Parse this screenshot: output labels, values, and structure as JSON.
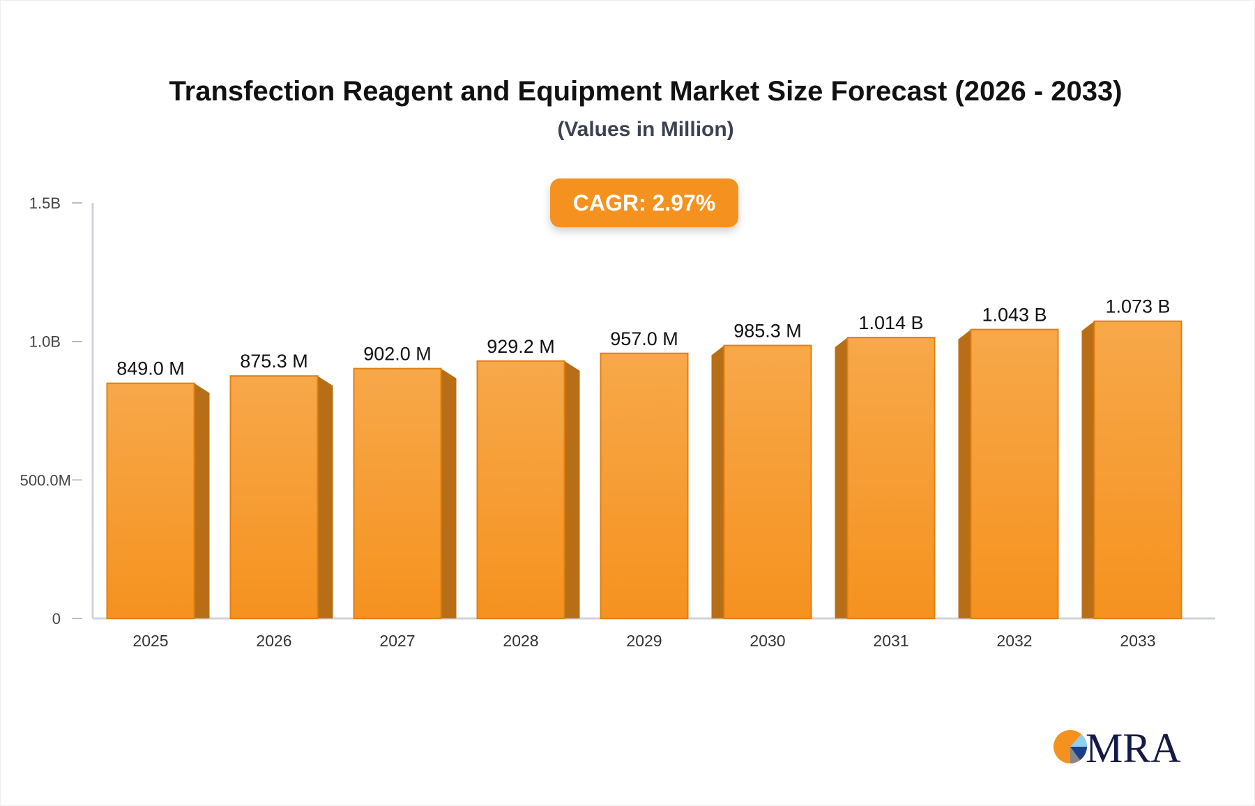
{
  "chart_data": {
    "type": "bar",
    "title": "Transfection Reagent and Equipment Market Size Forecast (2026 - 2033)",
    "subtitle": "(Values in Million)",
    "annotation": "CAGR: 2.97%",
    "categories": [
      "2025",
      "2026",
      "2027",
      "2028",
      "2029",
      "2030",
      "2031",
      "2032",
      "2033"
    ],
    "values": [
      849.0,
      875.3,
      902.0,
      929.2,
      957.0,
      985.3,
      1014,
      1043,
      1073
    ],
    "data_labels": [
      "849.0 M",
      "875.3 M",
      "902.0 M",
      "929.2 M",
      "957.0 M",
      "985.3 M",
      "1.014 B",
      "1.043 B",
      "1.073 B"
    ],
    "ylim": [
      0,
      1500
    ],
    "yticks": [
      {
        "value": 0,
        "label": "0"
      },
      {
        "value": 500,
        "label": "500.0M"
      },
      {
        "value": 1000,
        "label": "1.0B"
      },
      {
        "value": 1500,
        "label": "1.5B"
      }
    ],
    "grid": false,
    "legend": "none",
    "colors": {
      "bar_top": "#f7a84a",
      "bar_bottom": "#f5921f",
      "bar_side": "#b86e17",
      "accent": "#f5921f"
    }
  },
  "logo": {
    "text": "MRA"
  }
}
